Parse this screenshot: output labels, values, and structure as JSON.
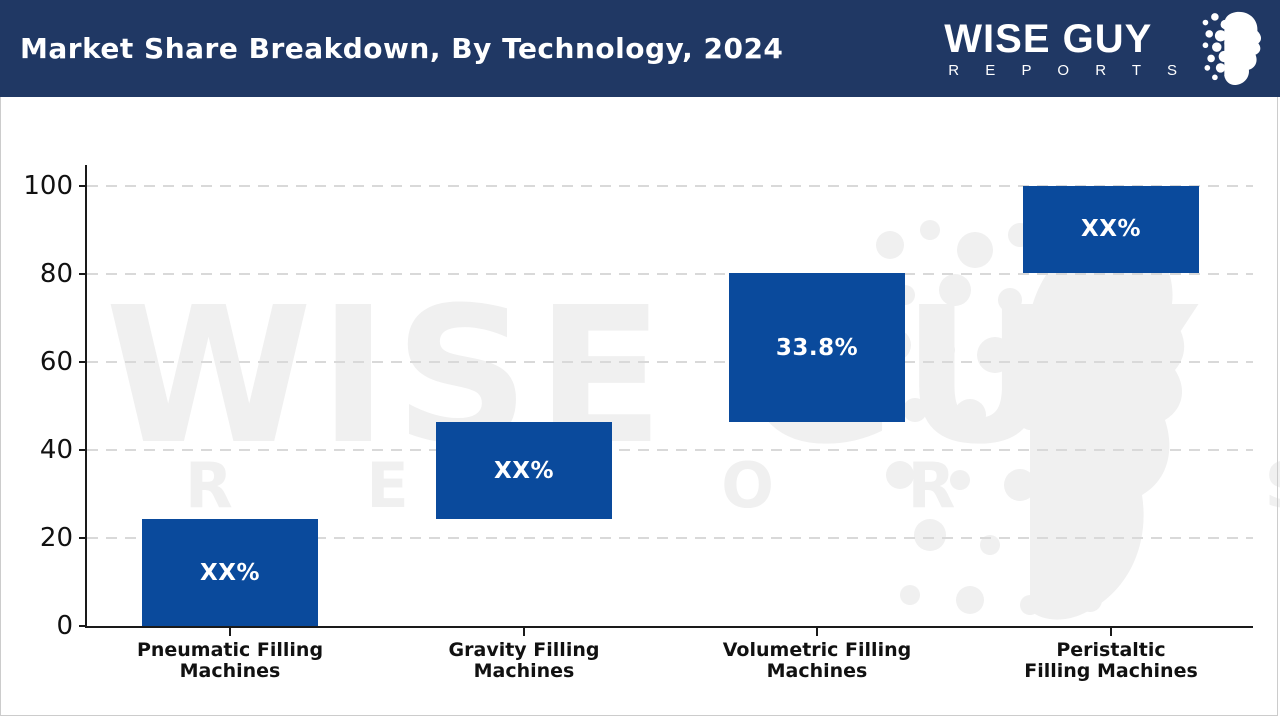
{
  "header": {
    "title": "Market Share Breakdown, By Technology, 2024",
    "logo": {
      "brand_line1": "WISE GUY",
      "brand_line2": "R E P O R T S"
    }
  },
  "watermark": {
    "line1": "WISE GUY",
    "line2": "R E P O R T S"
  },
  "colors": {
    "header_bg": "#203864",
    "title_text": "#ffffff",
    "bar": "#0a4a9c",
    "bar_label": "#ffffff",
    "grid": "#d9d9d9",
    "axis": "#1a1a1a",
    "tick_label": "#111111",
    "watermark": "#f0f0f0"
  },
  "chart_data": {
    "type": "bar",
    "subtype": "floating-segment-waterfall",
    "title": "Market Share Breakdown, By Technology, 2024",
    "xlabel": "",
    "ylabel": "",
    "ylim": [
      0,
      100
    ],
    "yticks": [
      0,
      20,
      40,
      60,
      80,
      100
    ],
    "grid": "horizontal-dashed",
    "legend": "none",
    "categories": [
      {
        "line1": "Pneumatic Filling",
        "line2": "Machines"
      },
      {
        "line1": "Gravity Filling",
        "line2": "Machines"
      },
      {
        "line1": "Volumetric Filling",
        "line2": "Machines"
      },
      {
        "line1": "Peristaltic",
        "line2": "Filling Machines"
      }
    ],
    "segments": [
      {
        "category": "Pneumatic Filling Machines",
        "start": 0,
        "end": 24.2,
        "value_label": "XX%"
      },
      {
        "category": "Gravity Filling Machines",
        "start": 24.2,
        "end": 46.3,
        "value_label": "XX%"
      },
      {
        "category": "Volumetric Filling Machines",
        "start": 46.3,
        "end": 80.1,
        "value_label": "33.8%"
      },
      {
        "category": "Peristaltic Filling Machines",
        "start": 80.1,
        "end": 100,
        "value_label": "XX%"
      }
    ]
  }
}
